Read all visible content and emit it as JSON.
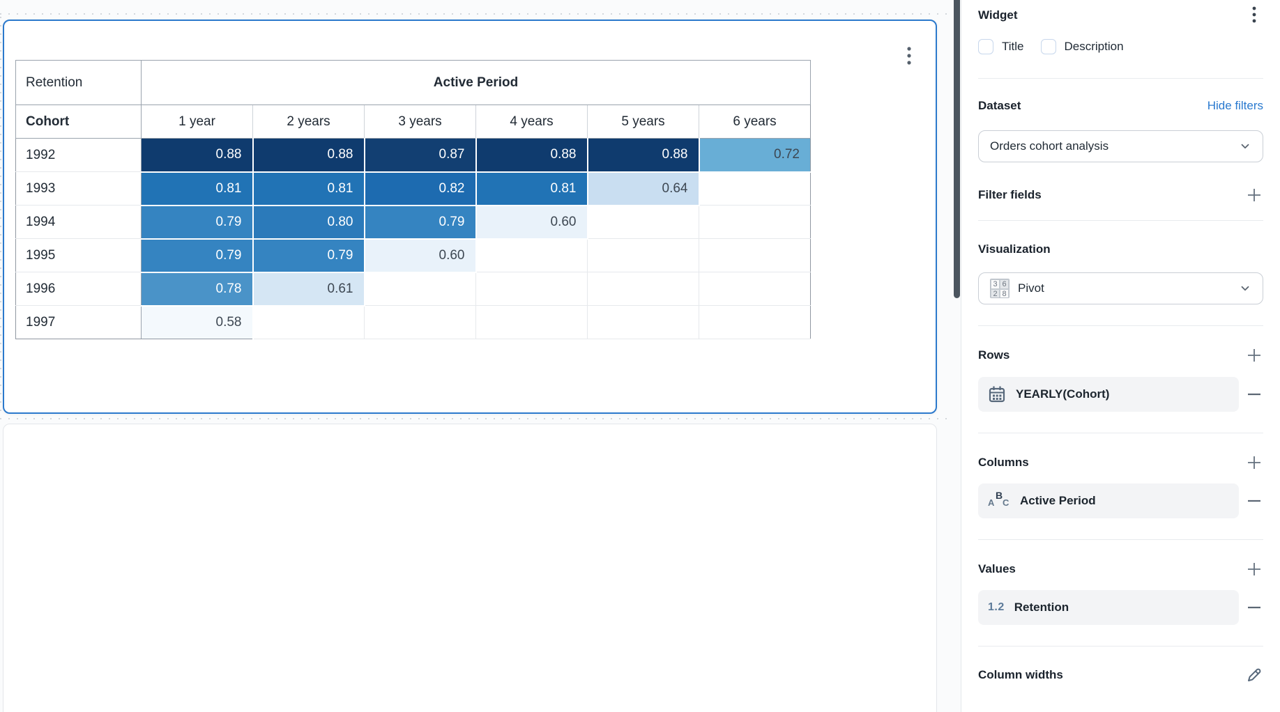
{
  "colors": {
    "selection_blue": "#2b79cc",
    "link_blue": "#2979cf",
    "scrollbar": "#4b555f",
    "canvas_bg": "#fafbfc",
    "chip_bg": "#f3f4f6"
  },
  "chart_data": {
    "type": "heatmap",
    "corner_label": "Retention",
    "column_group_label": "Active Period",
    "row_header": "Cohort",
    "columns": [
      "1 year",
      "2 years",
      "3 years",
      "4 years",
      "5 years",
      "6 years"
    ],
    "rows": [
      {
        "cohort": "1992",
        "values": [
          0.88,
          0.88,
          0.87,
          0.88,
          0.88,
          0.72
        ]
      },
      {
        "cohort": "1993",
        "values": [
          0.81,
          0.81,
          0.82,
          0.81,
          0.64,
          null
        ]
      },
      {
        "cohort": "1994",
        "values": [
          0.79,
          0.8,
          0.79,
          0.6,
          null,
          null
        ]
      },
      {
        "cohort": "1995",
        "values": [
          0.79,
          0.79,
          0.6,
          null,
          null,
          null
        ]
      },
      {
        "cohort": "1996",
        "values": [
          0.78,
          0.61,
          null,
          null,
          null,
          null
        ]
      },
      {
        "cohort": "1997",
        "values": [
          0.58,
          null,
          null,
          null,
          null,
          null
        ]
      }
    ],
    "value_range": [
      0.58,
      0.88
    ],
    "palette": {
      "0.88": {
        "bg": "#0f3b6e",
        "fg": "#ffffff"
      },
      "0.87": {
        "bg": "#123f72",
        "fg": "#ffffff"
      },
      "0.82": {
        "bg": "#1d6bb0",
        "fg": "#ffffff"
      },
      "0.81": {
        "bg": "#2173b5",
        "fg": "#ffffff"
      },
      "0.80": {
        "bg": "#2b7aba",
        "fg": "#ffffff"
      },
      "0.79": {
        "bg": "#3584c1",
        "fg": "#ffffff"
      },
      "0.78": {
        "bg": "#4a93c8",
        "fg": "#ffffff"
      },
      "0.72": {
        "bg": "#68aed6",
        "fg": "#3d4752"
      },
      "0.64": {
        "bg": "#c9def1",
        "fg": "#3d4752"
      },
      "0.61": {
        "bg": "#d5e6f4",
        "fg": "#3d4752"
      },
      "0.60": {
        "bg": "#e9f2fa",
        "fg": "#3d4752"
      },
      "0.58": {
        "bg": "#f4f9fd",
        "fg": "#3d4752"
      }
    }
  },
  "panel": {
    "title": "Widget",
    "checkboxes": [
      {
        "label": "Title",
        "checked": false
      },
      {
        "label": "Description",
        "checked": false
      }
    ],
    "dataset": {
      "heading": "Dataset",
      "link": "Hide filters",
      "selected": "Orders cohort analysis"
    },
    "filter_fields": {
      "heading": "Filter fields"
    },
    "visualization": {
      "heading": "Visualization",
      "selected": "Pivot",
      "icon_cells": [
        "3",
        "6",
        "2",
        "8"
      ]
    },
    "rows_section": {
      "heading": "Rows",
      "items": [
        {
          "label": "YEARLY(Cohort)",
          "icon": "calendar"
        }
      ]
    },
    "columns_section": {
      "heading": "Columns",
      "items": [
        {
          "label": "Active Period",
          "icon": "text-field"
        }
      ]
    },
    "values_section": {
      "heading": "Values",
      "items": [
        {
          "label": "Retention",
          "icon": "numeric-field"
        }
      ]
    },
    "column_widths": {
      "heading": "Column widths"
    }
  }
}
